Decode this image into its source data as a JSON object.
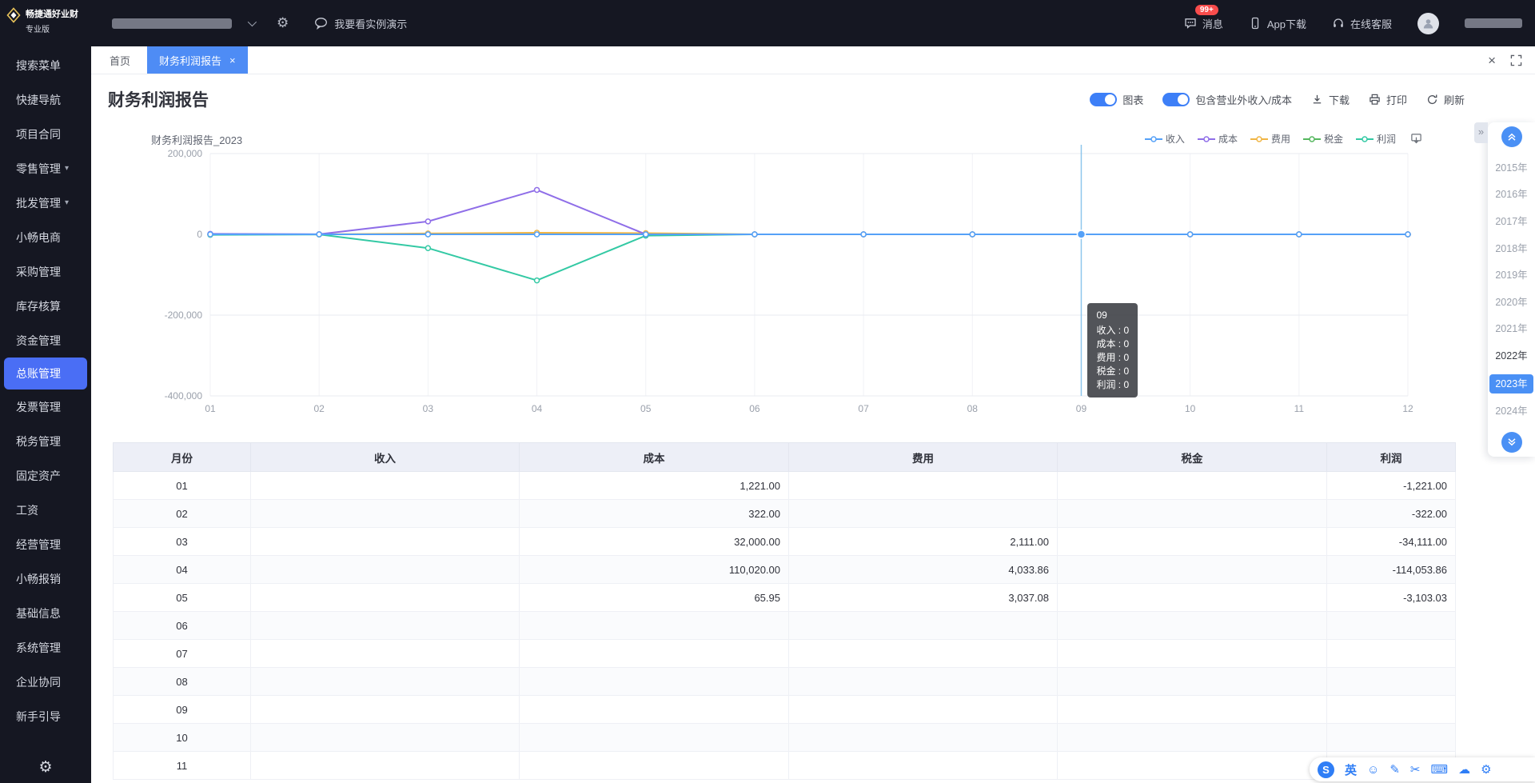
{
  "app": {
    "brand_line1": "畅捷通好业财",
    "brand_line2": "专业版"
  },
  "icons": {
    "caret_down": "▾",
    "close": "×",
    "collapse": "»",
    "gear": "⚙"
  },
  "topbar": {
    "demo_label": "我要看实例演示",
    "messages_label": "消息",
    "badge": "99+",
    "app_download_label": "App下载",
    "support_label": "在线客服"
  },
  "sidebar": {
    "items": [
      {
        "key": "search-menu",
        "label": "搜索菜单"
      },
      {
        "key": "quick-nav",
        "label": "快捷导航"
      },
      {
        "key": "project-contract",
        "label": "项目合同"
      },
      {
        "key": "retail-mgmt",
        "label": "零售管理",
        "caret": true
      },
      {
        "key": "wholesale-mgmt",
        "label": "批发管理",
        "caret": true
      },
      {
        "key": "xiaochang-ecommerce",
        "label": "小畅电商"
      },
      {
        "key": "purchase-mgmt",
        "label": "采购管理"
      },
      {
        "key": "inventory-accounting",
        "label": "库存核算"
      },
      {
        "key": "funds-mgmt",
        "label": "资金管理"
      },
      {
        "key": "general-ledger",
        "label": "总账管理",
        "active": true
      },
      {
        "key": "invoice-mgmt",
        "label": "发票管理"
      },
      {
        "key": "tax-mgmt",
        "label": "税务管理"
      },
      {
        "key": "fixed-assets",
        "label": "固定资产"
      },
      {
        "key": "payroll",
        "label": "工资"
      },
      {
        "key": "business-mgmt",
        "label": "经营管理"
      },
      {
        "key": "xiaochang-expense",
        "label": "小畅报销"
      },
      {
        "key": "basic-info",
        "label": "基础信息"
      },
      {
        "key": "system-mgmt",
        "label": "系统管理"
      },
      {
        "key": "enterprise-collab",
        "label": "企业协同"
      },
      {
        "key": "beginner-guide",
        "label": "新手引导"
      }
    ]
  },
  "tabs": [
    {
      "label": "首页"
    },
    {
      "label": "财务利润报告",
      "active": true
    }
  ],
  "page": {
    "title": "财务利润报告",
    "toggle_chart_label": "图表",
    "toggle_include_label": "包含营业外收入/成本",
    "download_label": "下载",
    "print_label": "打印",
    "refresh_label": "刷新"
  },
  "chart_data": {
    "type": "line",
    "title": "财务利润报告_2023",
    "categories": [
      "01",
      "02",
      "03",
      "04",
      "05",
      "06",
      "07",
      "08",
      "09",
      "10",
      "11",
      "12"
    ],
    "series": [
      {
        "key": "income",
        "name": "收入",
        "color": "#55a1f8",
        "values": [
          0,
          0,
          0,
          0,
          0,
          0,
          0,
          0,
          0,
          0,
          0,
          0
        ]
      },
      {
        "key": "cost",
        "name": "成本",
        "color": "#8f6ee8",
        "values": [
          1221,
          322,
          32000,
          110020,
          65.95,
          0,
          0,
          0,
          0,
          0,
          0,
          0
        ]
      },
      {
        "key": "expense",
        "name": "费用",
        "color": "#f0b544",
        "values": [
          0,
          0,
          2111,
          4033.86,
          3037.08,
          0,
          0,
          0,
          0,
          0,
          0,
          0
        ]
      },
      {
        "key": "tax",
        "name": "税金",
        "color": "#55b75e",
        "values": [
          0,
          0,
          0,
          0,
          0,
          0,
          0,
          0,
          0,
          0,
          0,
          0
        ]
      },
      {
        "key": "profit",
        "name": "利润",
        "color": "#33c9a4",
        "values": [
          -1221,
          -322,
          -34111,
          -114053.86,
          -3103.03,
          0,
          0,
          0,
          0,
          0,
          0,
          0
        ]
      }
    ],
    "ylim": [
      -400000,
      200000
    ],
    "yticks": [
      "200,000",
      "0",
      "-200,000",
      "-400,000"
    ],
    "hover_index": 8,
    "legend_position": "top-right",
    "grid": true
  },
  "tooltip": {
    "title": "09",
    "lines": [
      "收入 : 0",
      "成本 : 0",
      "费用 : 0",
      "税金 : 0",
      "利润 : 0"
    ]
  },
  "year_panel": {
    "years": [
      {
        "label": "2015年"
      },
      {
        "label": "2016年"
      },
      {
        "label": "2017年"
      },
      {
        "label": "2018年"
      },
      {
        "label": "2019年"
      },
      {
        "label": "2020年"
      },
      {
        "label": "2021年"
      },
      {
        "label": "2022年",
        "strong": true
      },
      {
        "label": "2023年",
        "selected": true
      },
      {
        "label": "2024年"
      }
    ]
  },
  "table": {
    "columns": [
      "月份",
      "收入",
      "成本",
      "费用",
      "税金",
      "利润"
    ],
    "rows": [
      [
        "01",
        "",
        "1,221.00",
        "",
        "",
        "-1,221.00"
      ],
      [
        "02",
        "",
        "322.00",
        "",
        "",
        "-322.00"
      ],
      [
        "03",
        "",
        "32,000.00",
        "2,111.00",
        "",
        "-34,111.00"
      ],
      [
        "04",
        "",
        "110,020.00",
        "4,033.86",
        "",
        "-114,053.86"
      ],
      [
        "05",
        "",
        "65.95",
        "3,037.08",
        "",
        "-3,103.03"
      ],
      [
        "06",
        "",
        "",
        "",
        "",
        ""
      ],
      [
        "07",
        "",
        "",
        "",
        "",
        ""
      ],
      [
        "08",
        "",
        "",
        "",
        "",
        ""
      ],
      [
        "09",
        "",
        "",
        "",
        "",
        ""
      ],
      [
        "10",
        "",
        "",
        "",
        "",
        ""
      ],
      [
        "11",
        "",
        "",
        "",
        "",
        ""
      ]
    ]
  },
  "ime": {
    "logo": "S",
    "mode": "英",
    "icons": [
      {
        "name": "emoji-icon",
        "glyph": "☺"
      },
      {
        "name": "pen-icon",
        "glyph": "✎"
      },
      {
        "name": "scissors-icon",
        "glyph": "✂"
      },
      {
        "name": "keyboard-icon",
        "glyph": "⌨"
      },
      {
        "name": "cloud-icon",
        "glyph": "☁"
      },
      {
        "name": "settings-icon",
        "glyph": "⚙"
      }
    ]
  }
}
